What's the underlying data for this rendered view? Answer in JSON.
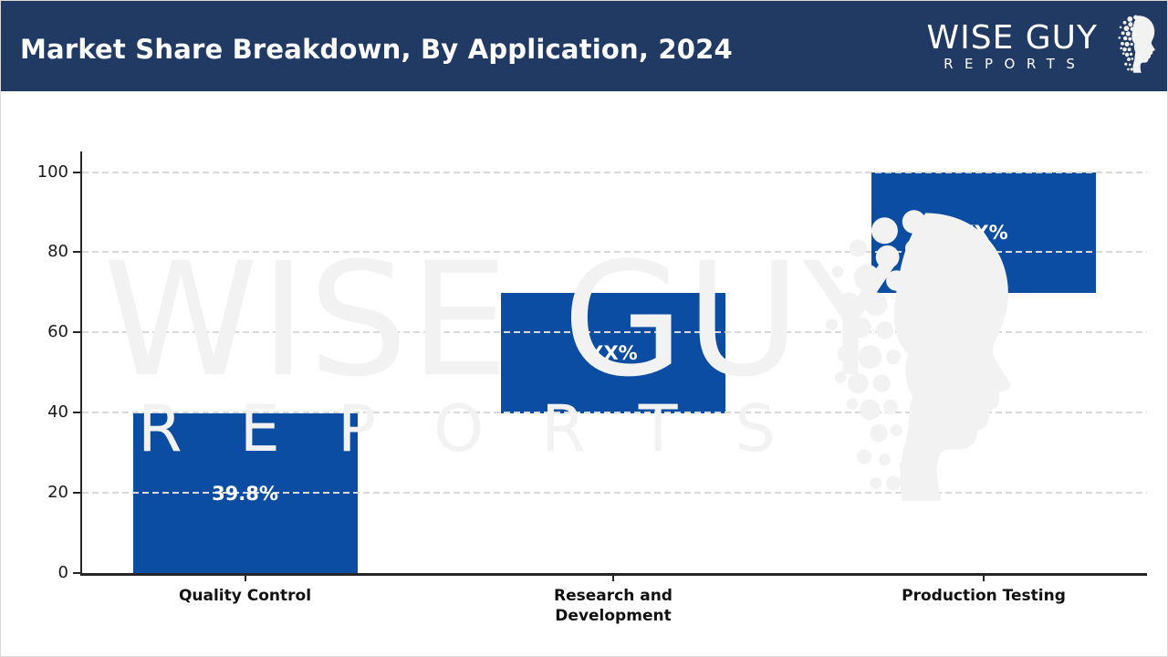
{
  "header": {
    "title": "Market Share Breakdown, By Application, 2024",
    "bg_color": "#213a64",
    "logo_line1": "WISE GUY",
    "logo_line2": "REPORTS"
  },
  "watermark": {
    "line1": "WISE GUY",
    "line2": "REPORTS"
  },
  "chart_data": {
    "type": "bar",
    "subtype": "floating-waterfall-segments",
    "title": "Market Share Breakdown, By Application, 2024",
    "categories": [
      "Quality Control",
      "Research and\nDevelopment",
      "Production Testing"
    ],
    "segments": [
      {
        "category": "Quality Control",
        "start": 0,
        "end": 39.8,
        "value_label": "39.8%"
      },
      {
        "category": "Research and Development",
        "start": 39.8,
        "end": 69.9,
        "value_label": "XX%"
      },
      {
        "category": "Production Testing",
        "start": 69.9,
        "end": 100,
        "value_label": "XX%"
      }
    ],
    "ylim": [
      0,
      100
    ],
    "yticks": [
      0,
      20,
      40,
      60,
      80,
      100
    ],
    "xlabel": "",
    "ylabel": "",
    "grid": {
      "horizontal": true,
      "style": "dashed",
      "color": "#d9d9d9",
      "drawn_over_bars": true
    },
    "legend": "none",
    "bar_color": "#0b4da2",
    "value_label_color": "#ffffff",
    "axis_color": "#262626"
  }
}
